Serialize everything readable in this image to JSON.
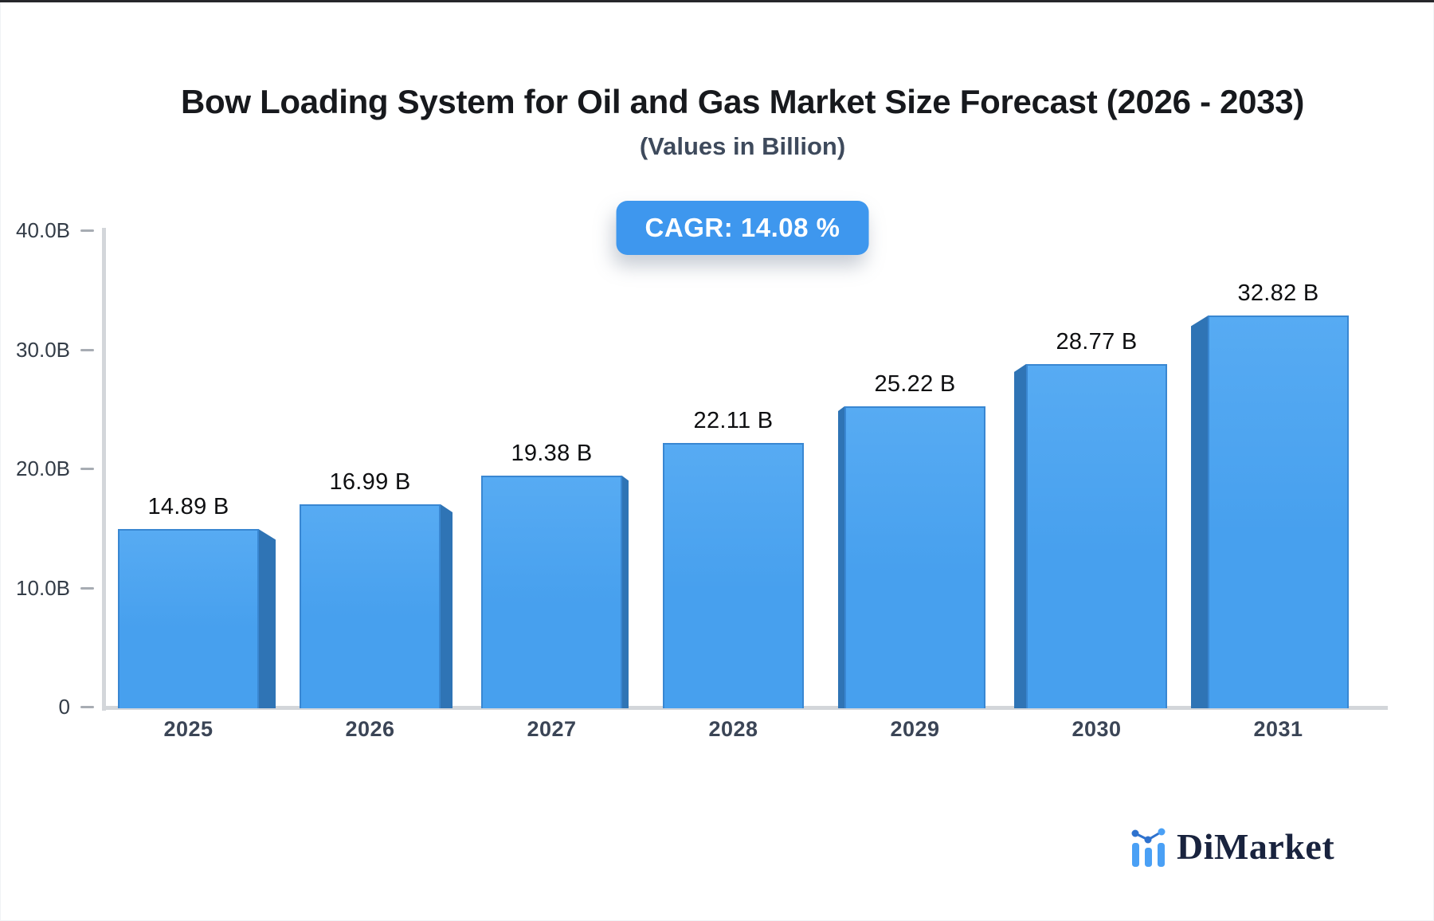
{
  "header": {
    "title": "Bow Loading System for Oil and Gas Market Size Forecast (2026 - 2033)",
    "subtitle": "(Values in Billion)"
  },
  "badge": {
    "label": "CAGR: 14.08 %"
  },
  "chart_data": {
    "type": "bar",
    "title": "Bow Loading System for Oil and Gas Market Size Forecast (2026 - 2033)",
    "subtitle": "(Values in Billion)",
    "unit": "Billion",
    "cagr_label": "CAGR: 14.08 %",
    "categories": [
      "2025",
      "2026",
      "2027",
      "2028",
      "2029",
      "2030",
      "2031"
    ],
    "values": [
      14.89,
      16.99,
      19.38,
      22.11,
      25.22,
      28.77,
      32.82
    ],
    "value_labels": [
      "14.89 B",
      "16.99 B",
      "19.38 B",
      "22.11 B",
      "25.22 B",
      "28.77 B",
      "32.82 B"
    ],
    "y_ticks": [
      {
        "value": 40,
        "label": "40.0B"
      },
      {
        "value": 30,
        "label": "30.0B"
      },
      {
        "value": 20,
        "label": "20.0B"
      },
      {
        "value": 10,
        "label": "10.0B"
      },
      {
        "value": 0,
        "label": "0"
      }
    ],
    "ylim": [
      0,
      40
    ],
    "xlabel": "",
    "ylabel": "",
    "grid": false,
    "legend": false,
    "bar_3d_effect": "center-perspective (side faces lean outward from middle bar)",
    "style": {
      "bar_face_color": "#47A0EE",
      "bar_face_gradient_top": "#57ABF3",
      "bar_face_border": "#3987D2",
      "bar_side_color": "#2F74B5",
      "axis_line_color": "#D3D6DA",
      "tick_mark_color": "#A7ACB3",
      "badge_bg": "#3E97EE",
      "badge_text": "#FFFFFF"
    }
  },
  "logo": {
    "name": "DiMarket",
    "icon": "mini-bar-line-chart-icon",
    "icon_bar_color": "#4AA0F5",
    "icon_line_color": "#2E72CE"
  }
}
